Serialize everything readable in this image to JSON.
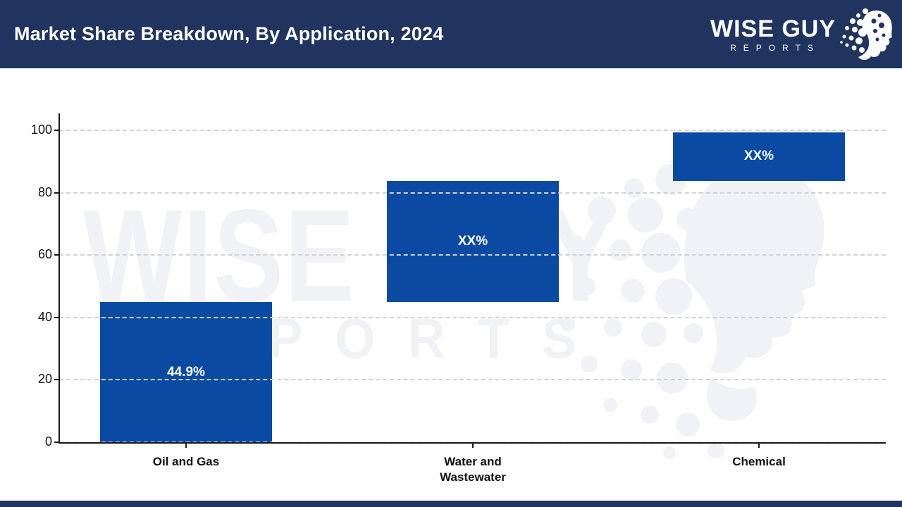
{
  "header": {
    "title": "Market Share Breakdown, By Application, 2024",
    "bg_color": "#20345f",
    "logo": {
      "line1": "WISE GUY",
      "line2": "REPORTS",
      "icon": "dotted-head-profile"
    }
  },
  "watermark": {
    "line1": "WISE GUY",
    "line2": "REPORTS",
    "icon": "dotted-head-profile"
  },
  "chart_data": {
    "type": "bar",
    "subtype": "floating-waterfall",
    "title": "Market Share Breakdown, By Application, 2024",
    "categories": [
      {
        "label": "Oil and Gas",
        "lines": [
          "Oil and Gas"
        ]
      },
      {
        "label": "Water and Wastewater",
        "lines": [
          "Water and",
          "Wastewater"
        ]
      },
      {
        "label": "Chemical",
        "lines": [
          "Chemical"
        ]
      }
    ],
    "bars": [
      {
        "category": "Oil and Gas",
        "start": 0,
        "end": 44.9,
        "label": "44.9%"
      },
      {
        "category": "Water and Wastewater",
        "start": 44.9,
        "end": 83.8,
        "label": "XX%"
      },
      {
        "category": "Chemical",
        "start": 83.8,
        "end": 99.3,
        "label": "XX%"
      }
    ],
    "bar_color": "#0b4aa2",
    "bar_label_color": "#ffffff",
    "yticks": [
      0,
      20,
      40,
      60,
      80,
      100
    ],
    "ylim": [
      0,
      104
    ],
    "xlabel": "",
    "ylabel": "",
    "grid": "dashed-horizontal",
    "gridline_color": "#d2d2d2",
    "legend": "none"
  },
  "footer": {
    "bg_color": "#20345f"
  }
}
